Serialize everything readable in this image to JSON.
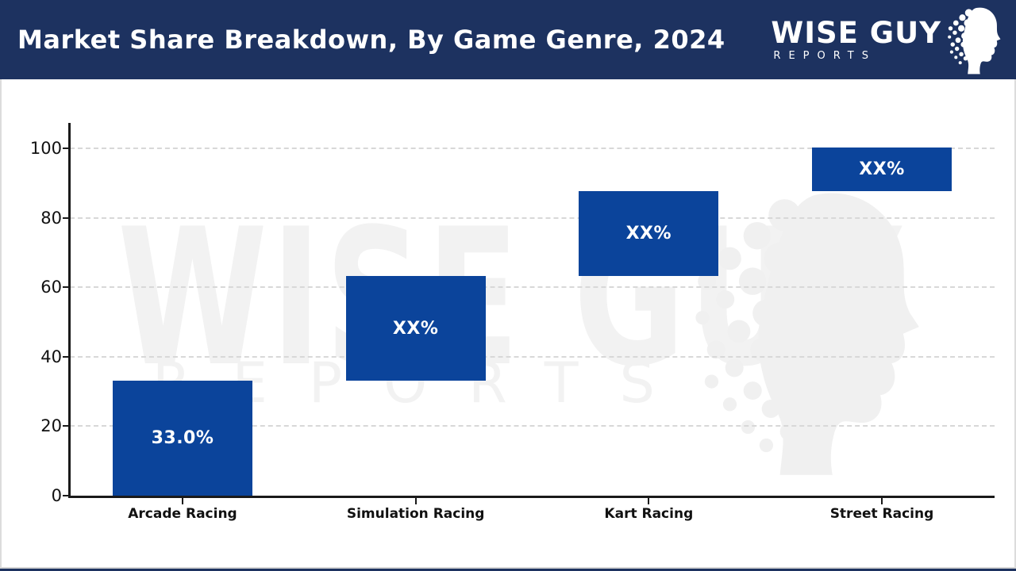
{
  "header": {
    "title": "Market Share Breakdown, By Game Genre, 2024",
    "logo": {
      "name": "WISE GUY",
      "sub": "REPORTS"
    }
  },
  "watermark": {
    "name": "WISE GUY",
    "sub": "REPORTS"
  },
  "chart_data": {
    "type": "bar",
    "subtype": "waterfall",
    "title": "Market Share Breakdown, By Game Genre, 2024",
    "categories": [
      "Arcade Racing",
      "Simulation Racing",
      "Kart Racing",
      "Street Racing"
    ],
    "segments": [
      {
        "category": "Arcade Racing",
        "start": 0,
        "end": 33.0,
        "label": "33.0%"
      },
      {
        "category": "Simulation Racing",
        "start": 33.0,
        "end": 63.3,
        "label": "XX%"
      },
      {
        "category": "Kart Racing",
        "start": 63.3,
        "end": 87.7,
        "label": "XX%"
      },
      {
        "category": "Street Racing",
        "start": 87.7,
        "end": 100.3,
        "label": "XX%"
      }
    ],
    "xlabel": "",
    "ylabel": "",
    "ylim": [
      0,
      107
    ],
    "yticks": [
      0,
      20,
      40,
      60,
      80,
      100
    ],
    "grid": "horizontal-dashed",
    "legend": "none",
    "bar_color": "#0b449b",
    "bar_label_color": "#ffffff"
  },
  "colors": {
    "header_bg": "#1d3260",
    "bar": "#0b449b",
    "grid": "#d8d8d8",
    "axis": "#1a1a1a",
    "watermark": "#f2f2f2",
    "frame": "#dcdcdc"
  }
}
